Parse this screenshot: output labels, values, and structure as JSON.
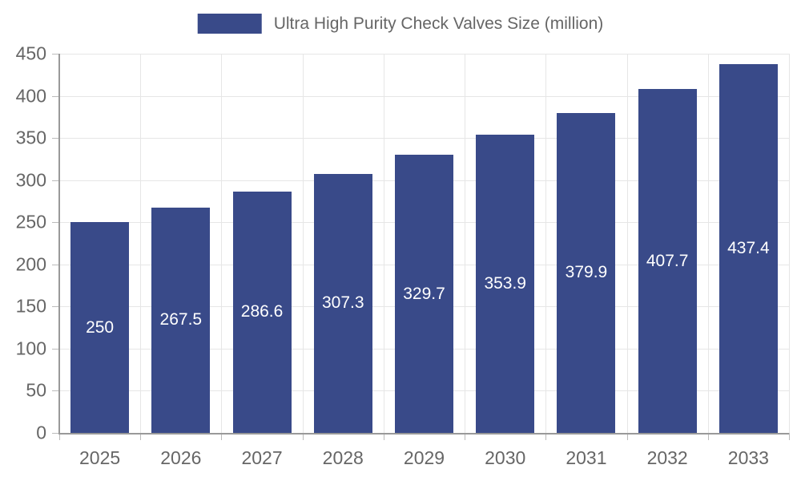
{
  "legend": {
    "label": "Ultra High Purity Check Valves Size (million)"
  },
  "colors": {
    "bar": "#394A89",
    "grid": "#e6e6e6",
    "axis": "#999999",
    "tick": "#bbbbbb",
    "axis_label": "#666666",
    "bar_label": "#ffffff",
    "legend_text": "#666666",
    "background": "#ffffff"
  },
  "chart_data": {
    "type": "bar",
    "title": "Ultra High Purity Check Valves Size (million)",
    "categories": [
      "2025",
      "2026",
      "2027",
      "2028",
      "2029",
      "2030",
      "2031",
      "2032",
      "2033"
    ],
    "series": [
      {
        "name": "Ultra High Purity Check Valves Size (million)",
        "values": [
          250,
          267.5,
          286.6,
          307.3,
          329.7,
          353.9,
          379.9,
          407.7,
          437.4
        ]
      }
    ],
    "value_labels": [
      "250",
      "267.5",
      "286.6",
      "307.3",
      "329.7",
      "353.9",
      "379.9",
      "407.7",
      "437.4"
    ],
    "xlabel": "",
    "ylabel": "",
    "ylim": [
      0,
      450
    ],
    "ytick_interval": 50,
    "yticks": [
      0,
      50,
      100,
      150,
      200,
      250,
      300,
      350,
      400,
      450
    ],
    "grid": "horizontal-and-vertical",
    "legend_position": "top-center",
    "bar_label_position": "inside-center"
  }
}
